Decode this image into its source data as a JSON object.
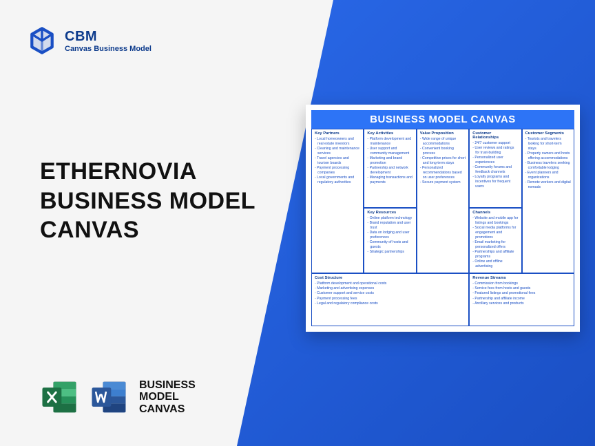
{
  "colors": {
    "brand_blue": "#1a4fc4",
    "gradient_start": "#2968e8",
    "gradient_end": "#1a4fc4",
    "header_blue": "#2d74f6",
    "excel_green": "#1d7044",
    "word_blue": "#2b579a",
    "background": "#f5f5f5"
  },
  "logo": {
    "title": "CBM",
    "subtitle": "Canvas Business Model"
  },
  "page_title": "ETHERNOVIA\nBUSINESS MODEL\nCANVAS",
  "footer_label": "BUSINESS\nMODEL\nCANVAS",
  "canvas": {
    "header": "BUSINESS MODEL CANVAS",
    "sections": {
      "key_partners": {
        "title": "Key Partners",
        "items": [
          "Local homeowners and real estate investors",
          "Cleaning and maintenance services",
          "Travel agencies and tourism boards",
          "Payment processing companies",
          "Local governments and regulatory authorities"
        ]
      },
      "key_activities": {
        "title": "Key Activities",
        "items": [
          "Platform development and maintenance",
          "User support and community management",
          "Marketing and brand promotion",
          "Partnership and network development",
          "Managing transactions and payments"
        ]
      },
      "value_proposition": {
        "title": "Value Proposition",
        "items": [
          "Wide range of unique accommodations",
          "Convenient booking process",
          "Competitive prices for short and long-term stays",
          "Personalized recommendations based on user preferences",
          "Secure payment system"
        ]
      },
      "customer_relationships": {
        "title": "Customer Relationships",
        "items": [
          "24/7 customer support",
          "User reviews and ratings for trust-building",
          "Personalized user experiences",
          "Community forums and feedback channels",
          "Loyalty programs and incentives for frequent users"
        ]
      },
      "customer_segments": {
        "title": "Customer Segments",
        "items": [
          "Tourists and travelers looking for short-term stays",
          "Property owners and hosts offering accommodations",
          "Business travelers seeking comfortable lodging",
          "Event planners and organizations",
          "Remote workers and digital nomads"
        ]
      },
      "key_resources": {
        "title": "Key Resources",
        "items": [
          "Online platform technology",
          "Brand reputation and user trust",
          "Data on lodging and user preferences",
          "Community of hosts and guests",
          "Strategic partnerships"
        ]
      },
      "channels": {
        "title": "Channels",
        "items": [
          "Website and mobile app for listings and bookings",
          "Social media platforms for engagement and promotions",
          "Email marketing for personalized offers",
          "Partnerships and affiliate programs",
          "Online and offline advertising"
        ]
      },
      "cost_structure": {
        "title": "Cost Structure",
        "items": [
          "Platform development and operational costs",
          "Marketing and advertising expenses",
          "Customer support and service costs",
          "Payment processing fees",
          "Legal and regulatory compliance costs"
        ]
      },
      "revenue_streams": {
        "title": "Revenue Streams",
        "items": [
          "Commission from bookings",
          "Service fees from hosts and guests",
          "Featured listings and promotional fees",
          "Partnership and affiliate income",
          "Ancillary services and products"
        ]
      }
    }
  }
}
